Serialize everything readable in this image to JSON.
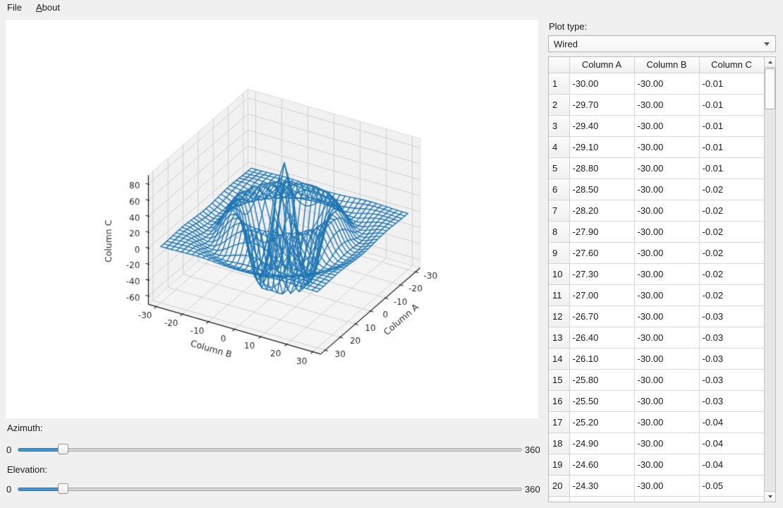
{
  "menu_bar": {
    "items": [
      {
        "label": "File",
        "underline_index": -1
      },
      {
        "label": "About",
        "underline_index": 0
      }
    ]
  },
  "chart_data": {
    "type": "wireframe-3d",
    "xlabel": "Column A",
    "ylabel": "Column B",
    "zlabel": "Column C",
    "x_ticks": [
      -30,
      -20,
      -10,
      0,
      10,
      20,
      30
    ],
    "y_ticks": [
      -30,
      -20,
      -10,
      0,
      10,
      20,
      30
    ],
    "z_ticks": [
      -60,
      -40,
      -20,
      0,
      20,
      40,
      60,
      80
    ],
    "xlim": [
      -33,
      33
    ],
    "ylim": [
      -33,
      33
    ],
    "zlim": [
      -70.4,
      91.4
    ],
    "z_box_ratio": 0.75,
    "view": {
      "elev": 30,
      "azim": 30
    },
    "surface": {
      "formula": "z = A*cos(k*r)*exp(-r^2/s), r = sqrt(x^2+y^2)",
      "amplitude": 84,
      "k": 0.3491,
      "s": 282,
      "grid_min": -30,
      "grid_max": 30,
      "grid_step": 2
    },
    "wire_color": "#1f77b4",
    "wall_color": "#f1f1f2",
    "floor_color": "#f4f4f5",
    "grid_color": "#cdcdcd",
    "spine_color": "#1a1a1a",
    "text_color": "#262626",
    "grid_on": true
  },
  "controls": {
    "azimuth": {
      "label": "Azimuth:",
      "min_label": "0",
      "max_label": "360",
      "value_percent": 9
    },
    "elevation": {
      "label": "Elevation:",
      "min_label": "0",
      "max_label": "360",
      "value_percent": 9
    }
  },
  "side_panel": {
    "plot_type_label": "Plot type:",
    "plot_type_dropdown": {
      "value": "Wired"
    },
    "table": {
      "columns": [
        "Column A",
        "Column B",
        "Column C"
      ],
      "row_numbers": [
        "1",
        "2",
        "3",
        "4",
        "5",
        "6",
        "7",
        "8",
        "9",
        "10",
        "11",
        "12",
        "13",
        "14",
        "15",
        "16",
        "17",
        "18",
        "19",
        "20"
      ],
      "rows": [
        [
          "-30.00",
          "-30.00",
          "-0.01"
        ],
        [
          "-29.70",
          "-30.00",
          "-0.01"
        ],
        [
          "-29.40",
          "-30.00",
          "-0.01"
        ],
        [
          "-29.10",
          "-30.00",
          "-0.01"
        ],
        [
          "-28.80",
          "-30.00",
          "-0.01"
        ],
        [
          "-28.50",
          "-30.00",
          "-0.02"
        ],
        [
          "-28.20",
          "-30.00",
          "-0.02"
        ],
        [
          "-27.90",
          "-30.00",
          "-0.02"
        ],
        [
          "-27.60",
          "-30.00",
          "-0.02"
        ],
        [
          "-27.30",
          "-30.00",
          "-0.02"
        ],
        [
          "-27.00",
          "-30.00",
          "-0.02"
        ],
        [
          "-26.70",
          "-30.00",
          "-0.03"
        ],
        [
          "-26.40",
          "-30.00",
          "-0.03"
        ],
        [
          "-26.10",
          "-30.00",
          "-0.03"
        ],
        [
          "-25.80",
          "-30.00",
          "-0.03"
        ],
        [
          "-25.50",
          "-30.00",
          "-0.03"
        ],
        [
          "-25.20",
          "-30.00",
          "-0.04"
        ],
        [
          "-24.90",
          "-30.00",
          "-0.04"
        ],
        [
          "-24.60",
          "-30.00",
          "-0.04"
        ],
        [
          "-24.30",
          "-30.00",
          "-0.05"
        ]
      ]
    }
  }
}
